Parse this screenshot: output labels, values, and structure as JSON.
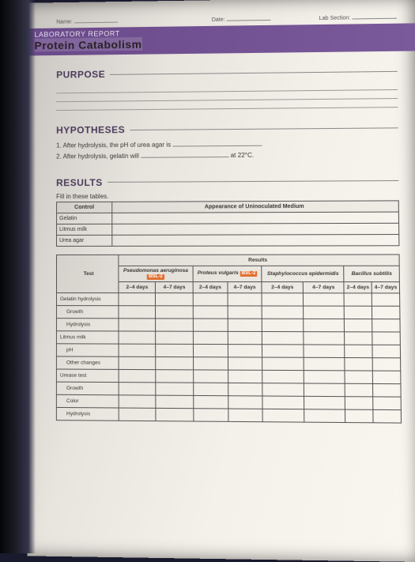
{
  "header": {
    "name_label": "Name:",
    "date_label": "Date:",
    "section_label": "Lab Section:",
    "report_label": "LABORATORY REPORT",
    "title": "Protein Catabolism"
  },
  "sections": {
    "purpose": "PURPOSE",
    "hypotheses": "HYPOTHESES",
    "results": "RESULTS"
  },
  "hypotheses": {
    "item1_pre": "1.  After hydrolysis, the pH of urea agar is",
    "item2_pre": "2.  After hydrolysis, gelatin will",
    "item2_post": "at 22°C."
  },
  "results": {
    "fill_label": "Fill in these tables.",
    "table1": {
      "header_control": "Control",
      "header_appearance": "Appearance of Uninoculated Medium",
      "rows": [
        "Gelatin",
        "Litmus milk",
        "Urea agar"
      ]
    },
    "table2": {
      "header_test": "Test",
      "header_results": "Results",
      "organisms": {
        "o1": "Pseudomonas aeruginosa",
        "o2": "Proteus vulgaris",
        "o3": "Staphylococcus epidermidis",
        "o4": "Bacillus subtilis"
      },
      "bsl": "BSL-2",
      "daycols": {
        "a": "2–4 days",
        "b": "4–7 days"
      },
      "rows": {
        "r1": "Gelatin hydrolysis",
        "r1a": "Growth",
        "r1b": "Hydrolysis",
        "r2": "Litmus milk",
        "r2a": "pH",
        "r2b": "Other changes",
        "r3": "Urease test",
        "r3a": "Growth",
        "r3b": "Color",
        "r3c": "Hydrolysis"
      }
    }
  },
  "style": {
    "accent": "#6a4a8a",
    "bsl_bg": "#e07030",
    "text": "#3a3632"
  }
}
